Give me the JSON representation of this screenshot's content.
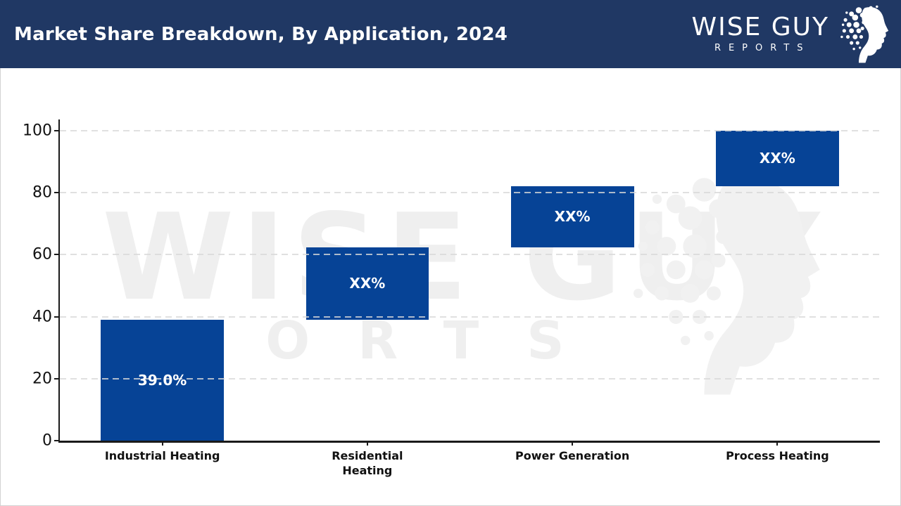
{
  "header": {
    "title": "Market Share Breakdown, By Application, 2024",
    "logo": {
      "line1": "WISE GUY",
      "line2": "REPORTS"
    }
  },
  "watermark": {
    "line1": "WISE GUY",
    "line2": "PORTS"
  },
  "colors": {
    "header_bg": "#203864",
    "bar": "#064396",
    "grid": "#d9d9d9",
    "axis": "#1a1a1a",
    "bar_label": "#ffffff",
    "watermark": "#efefef"
  },
  "chart_data": {
    "type": "bar",
    "subtype": "waterfall",
    "title": "Market Share Breakdown, By Application, 2024",
    "categories": [
      "Industrial Heating",
      "Residential Heating",
      "Power Generation",
      "Process Heating"
    ],
    "category_lines": [
      [
        "Industrial Heating"
      ],
      [
        "Residential",
        "Heating"
      ],
      [
        "Power Generation"
      ],
      [
        "Process Heating"
      ]
    ],
    "bars": [
      {
        "start": 0,
        "end": 39.0,
        "label": "39.0%"
      },
      {
        "start": 39.0,
        "end": 62.4,
        "label": "XX%"
      },
      {
        "start": 62.4,
        "end": 82.1,
        "label": "XX%"
      },
      {
        "start": 82.1,
        "end": 100.0,
        "label": "XX%"
      }
    ],
    "ylim": [
      0,
      100
    ],
    "yticks": [
      0,
      20,
      40,
      60,
      80,
      100
    ],
    "xlabel": "",
    "ylabel": "",
    "grid": "dashed-horizontal",
    "legend": "none"
  }
}
